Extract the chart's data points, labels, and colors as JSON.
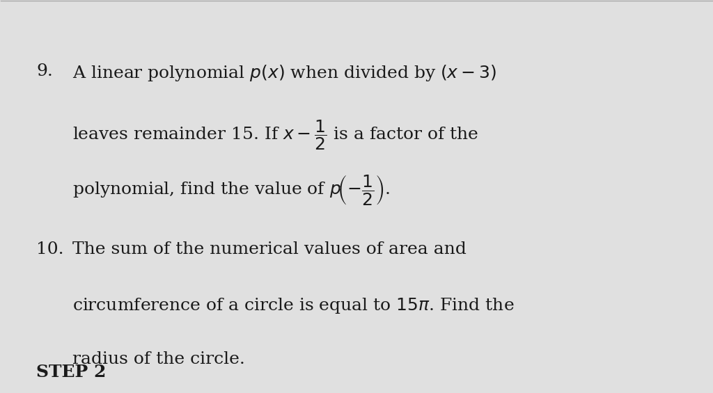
{
  "background_color": "#e0e0e0",
  "text_color": "#1a1a1a",
  "figsize": [
    10.24,
    5.65
  ],
  "dpi": 100,
  "q9_number": "9.",
  "q9_line1": "A linear polynomial $p(x)$ when divided by $(x-3)$",
  "q9_line2": "leaves remainder 15. If $x-\\dfrac{1}{2}$ is a factor of the",
  "q9_line3": "polynomial, find the value of $p\\!\\left(-\\dfrac{1}{2}\\right)$.",
  "q10_number": "10.",
  "q10_line1": "The sum of the numerical values of area and",
  "q10_line2": "circumference of a circle is equal to $15\\pi$. Find the",
  "q10_line3": "radius of the circle.",
  "step_label": "STEP 2",
  "font_size_main": 18,
  "font_size_number": 18
}
